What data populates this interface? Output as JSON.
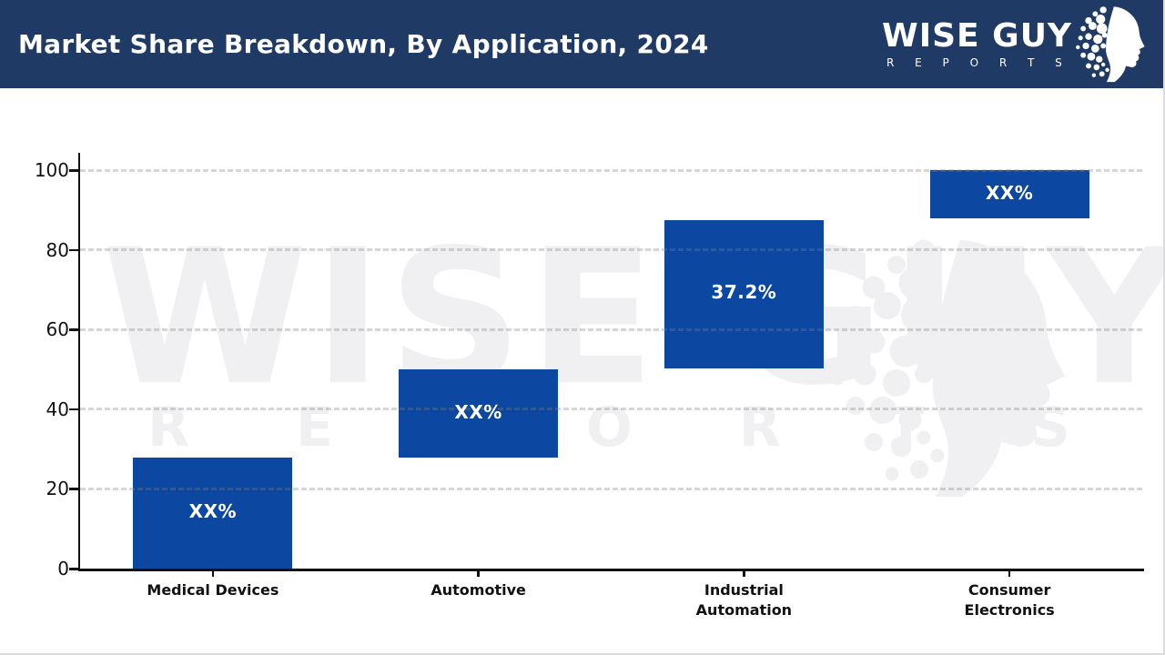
{
  "header": {
    "title": "Market Share Breakdown, By Application, 2024",
    "bg_color": "#1f3a64",
    "logo": {
      "line1": "WISE GUY",
      "line2": "R E P O R T S"
    }
  },
  "watermark": {
    "line1": "WISE GUY",
    "line2": "R E P O R T S"
  },
  "chart_data": {
    "type": "bar",
    "subtype": "waterfall",
    "title": "Market Share Breakdown, By Application, 2024",
    "categories": [
      "Medical Devices",
      "Automotive",
      "Industrial\nAutomation",
      "Consumer\nElectronics"
    ],
    "segments": [
      {
        "name": "Medical Devices",
        "start": 0,
        "end": 27.8,
        "label": "XX%"
      },
      {
        "name": "Automotive",
        "start": 27.8,
        "end": 50.0,
        "label": "XX%"
      },
      {
        "name": "Industrial Automation",
        "start": 50.3,
        "end": 87.5,
        "label": "37.2%"
      },
      {
        "name": "Consumer Electronics",
        "start": 87.8,
        "end": 100.0,
        "label": "XX%"
      }
    ],
    "xlabel": "",
    "ylabel": "",
    "ylim": [
      0,
      100
    ],
    "yticks": [
      0,
      20,
      40,
      60,
      80,
      100
    ],
    "grid": "horizontal-dashed",
    "legend": "none",
    "bar_color": "#0c47a1",
    "bar_label_color": "#ffffff",
    "axis_color": "#111111",
    "grid_color": "#d9d9d9"
  }
}
